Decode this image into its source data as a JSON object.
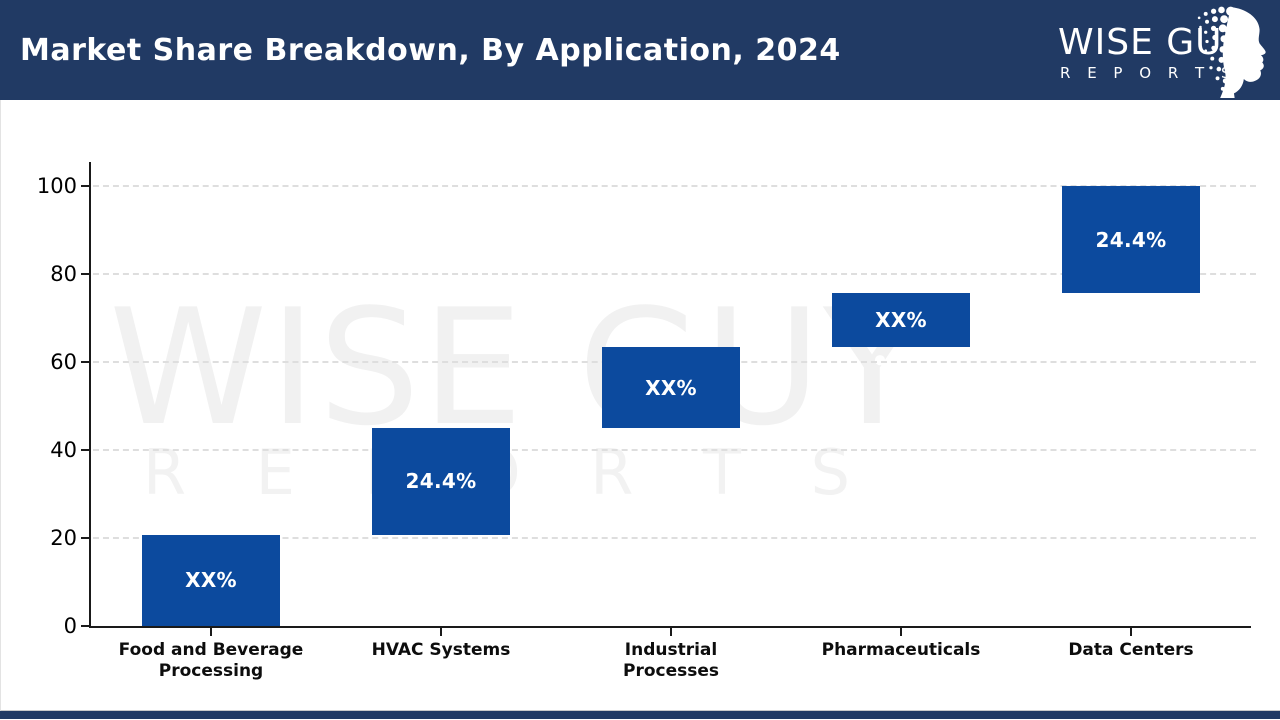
{
  "header": {
    "title": "Market Share Breakdown, By Application, 2024",
    "logo": {
      "wordmark": "WISE GUY",
      "subtext": "R E P O R T S"
    }
  },
  "watermark": {
    "line1": "WISE GUY",
    "line2": "R E P O R T S"
  },
  "colors": {
    "header_bg": "#213a64",
    "footer_bg": "#213a64",
    "bar": "#0c4a9e",
    "bar_label": "#ffffff",
    "grid": "#dedede",
    "axis": "#1a1a1a",
    "watermark": "#f1f1f1"
  },
  "chart_data": {
    "type": "bar",
    "subtype": "waterfall",
    "title": "Market Share Breakdown, By Application, 2024",
    "categories": [
      "Food and Beverage Processing",
      "HVAC Systems",
      "Industrial Processes",
      "Pharmaceuticals",
      "Data Centers"
    ],
    "categories_lines": [
      [
        "Food and Beverage",
        "Processing"
      ],
      [
        "HVAC Systems"
      ],
      [
        "Industrial",
        "Processes"
      ],
      [
        "Pharmaceuticals"
      ],
      [
        "Data Centers"
      ]
    ],
    "series": [
      {
        "name": "Market Share",
        "starts": [
          0,
          20.7,
          45.1,
          63.3,
          75.6
        ],
        "values": [
          20.7,
          24.4,
          18.2,
          12.3,
          24.4
        ]
      }
    ],
    "bar_labels": [
      "XX%",
      "24.4%",
      "XX%",
      "XX%",
      "24.4%"
    ],
    "xlabel": "",
    "ylabel": "",
    "ylim": [
      0,
      100
    ],
    "yticks": [
      0,
      20,
      40,
      60,
      80,
      100
    ],
    "grid": "dashed-horizontal",
    "legend": "none"
  }
}
